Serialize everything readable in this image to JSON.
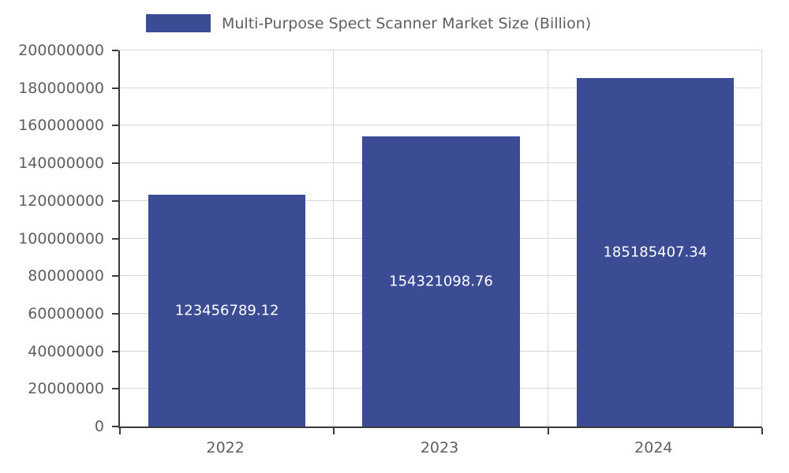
{
  "colors": {
    "bar": "#3B4C94",
    "grid": "#d9d9d9",
    "axis": "#3a3a3a",
    "tick_text": "#5f5f5f",
    "bar_label": "#ffffff"
  },
  "chart_data": {
    "type": "bar",
    "title": "Multi-Purpose Spect Scanner Market Size (Billion)",
    "categories": [
      "2022",
      "2023",
      "2024"
    ],
    "values": [
      123456789.12,
      154321098.76,
      185185407.34
    ],
    "value_labels": [
      "123456789.12",
      "154321098.76",
      "185185407.34"
    ],
    "xlabel": "",
    "ylabel": "",
    "ylim": [
      0,
      200000000
    ],
    "yticks": [
      0,
      20000000,
      40000000,
      60000000,
      80000000,
      100000000,
      120000000,
      140000000,
      160000000,
      180000000,
      200000000
    ],
    "ytick_labels": [
      "0",
      "20000000",
      "40000000",
      "60000000",
      "80000000",
      "100000000",
      "120000000",
      "140000000",
      "160000000",
      "180000000",
      "200000000"
    ],
    "grid": true,
    "legend_position": "top"
  }
}
